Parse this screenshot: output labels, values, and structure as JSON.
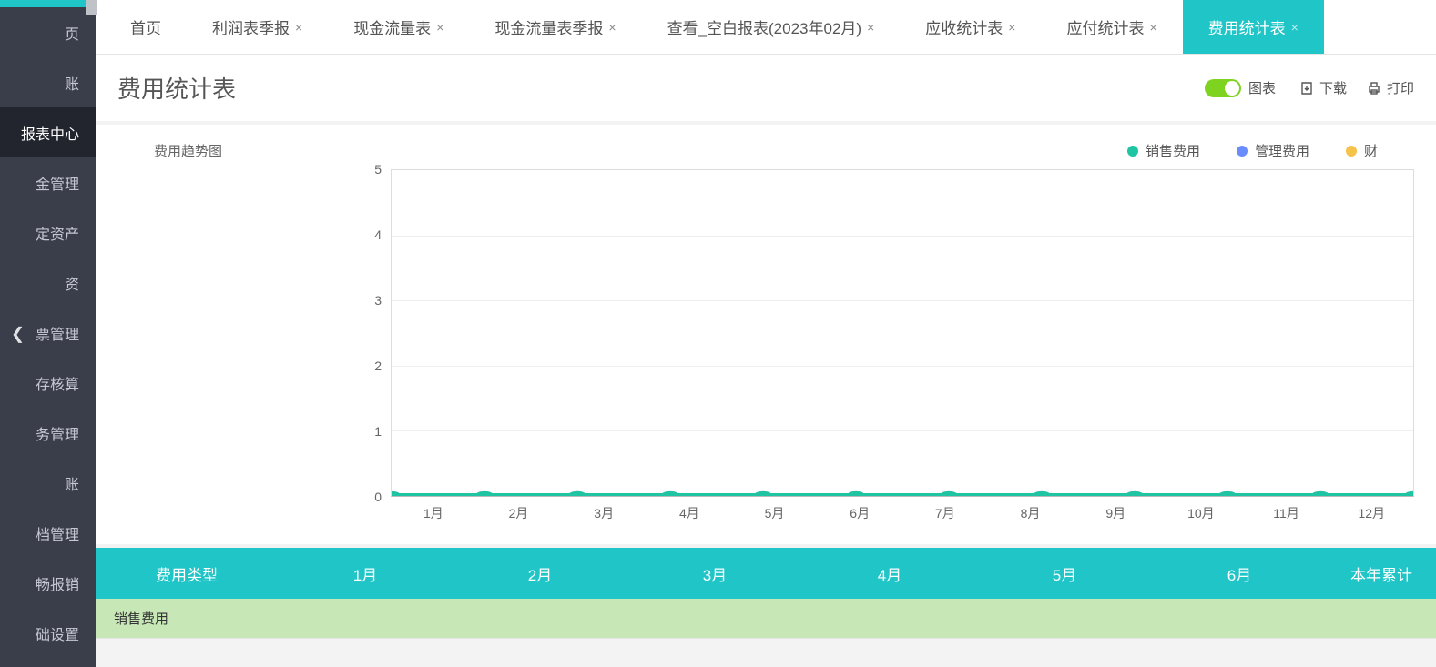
{
  "sidebar": {
    "items": [
      {
        "label": "页",
        "active": false
      },
      {
        "label": "账",
        "active": false
      },
      {
        "label": "报表中心",
        "active": true
      },
      {
        "label": "金管理",
        "active": false
      },
      {
        "label": "定资产",
        "active": false
      },
      {
        "label": "资",
        "active": false
      },
      {
        "label": "票管理",
        "active": false
      },
      {
        "label": "存核算",
        "active": false
      },
      {
        "label": "务管理",
        "active": false
      },
      {
        "label": "账",
        "active": false
      },
      {
        "label": "档管理",
        "active": false
      },
      {
        "label": "畅报销",
        "active": false
      },
      {
        "label": "础设置",
        "active": false
      }
    ]
  },
  "tabs": [
    {
      "label": "首页",
      "closable": false,
      "active": false
    },
    {
      "label": "利润表季报",
      "closable": true,
      "active": false
    },
    {
      "label": "现金流量表",
      "closable": true,
      "active": false
    },
    {
      "label": "现金流量表季报",
      "closable": true,
      "active": false
    },
    {
      "label": "查看_空白报表(2023年02月)",
      "closable": true,
      "active": false
    },
    {
      "label": "应收统计表",
      "closable": true,
      "active": false
    },
    {
      "label": "应付统计表",
      "closable": true,
      "active": false
    },
    {
      "label": "费用统计表",
      "closable": true,
      "active": true
    }
  ],
  "page": {
    "title": "费用统计表",
    "toggle_label": "图表",
    "download": "下载",
    "print": "打印"
  },
  "chart": {
    "title": "费用趋势图",
    "type": "line",
    "ylim": [
      0,
      5
    ],
    "ytick_step": 1,
    "yticks": [
      "0",
      "1",
      "2",
      "3",
      "4",
      "5"
    ],
    "xticks": [
      "1月",
      "2月",
      "3月",
      "4月",
      "5月",
      "6月",
      "7月",
      "8月",
      "9月",
      "10月",
      "11月",
      "12月"
    ],
    "series": [
      {
        "name": "销售费用",
        "color": "#1fc5a3",
        "values": [
          0,
          0,
          0,
          0,
          0,
          0,
          0,
          0,
          0,
          0,
          0,
          0
        ]
      },
      {
        "name": "管理费用",
        "color": "#6a8cff",
        "values": [
          0,
          0,
          0,
          0,
          0,
          0,
          0,
          0,
          0,
          0,
          0,
          0
        ]
      },
      {
        "name": "财",
        "color": "#f5c34a",
        "values": [
          0,
          0,
          0,
          0,
          0,
          0,
          0,
          0,
          0,
          0,
          0,
          0
        ]
      }
    ],
    "background_color": "#ffffff",
    "grid_color": "#eeeeee",
    "axis_color": "#dddddd",
    "marker_style": "circle-open",
    "marker_size": 5,
    "line_width": 2
  },
  "table": {
    "header_first": "费用类型",
    "months": [
      "1月",
      "2月",
      "3月",
      "4月",
      "5月",
      "6月"
    ],
    "header_last": "本年累计",
    "rows": [
      {
        "type": "销售费用",
        "cells": [
          "",
          "",
          "",
          "",
          "",
          ""
        ],
        "total": ""
      }
    ],
    "header_bg": "#1fc5c7",
    "row_bg": "#c7e8b6"
  }
}
